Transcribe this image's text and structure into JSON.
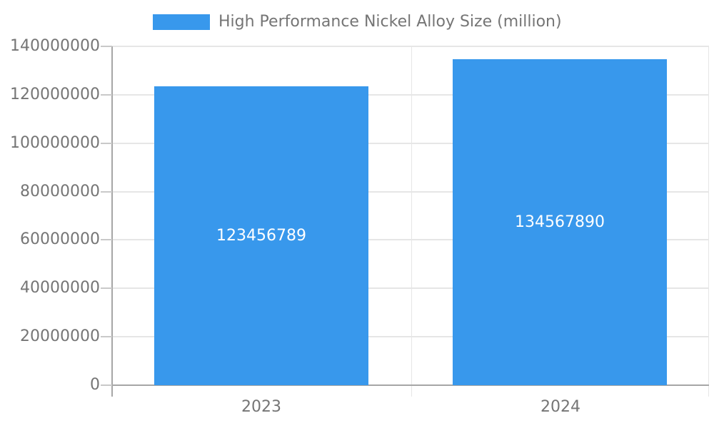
{
  "legend": {
    "label": "High Performance Nickel Alloy Size (million)",
    "swatch_color": "#3898EC"
  },
  "colors": {
    "bar": "#3898EC",
    "gridline": "#e6e6e6",
    "axis": "#a6a6a6",
    "tick": "#c9c9c9",
    "text": "#757575",
    "bar_label_text": "#ffffff",
    "background": "#ffffff"
  },
  "chart_data": {
    "type": "bar",
    "title": "High Performance Nickel Alloy Size (million)",
    "categories": [
      "2023",
      "2024"
    ],
    "series": [
      {
        "name": "High Performance Nickel Alloy Size (million)",
        "color": "#3898EC",
        "values": [
          123456789,
          134567890
        ]
      }
    ],
    "bar_value_labels": [
      "123456789",
      "134567890"
    ],
    "xlabel": "",
    "ylabel": "",
    "ylim": [
      0,
      140000000
    ],
    "yticks": [
      0,
      20000000,
      40000000,
      60000000,
      80000000,
      100000000,
      120000000,
      140000000
    ],
    "ytick_labels": [
      "0",
      "20000000",
      "40000000",
      "60000000",
      "80000000",
      "100000000",
      "120000000",
      "140000000"
    ],
    "grid": true,
    "legend_position": "top"
  }
}
